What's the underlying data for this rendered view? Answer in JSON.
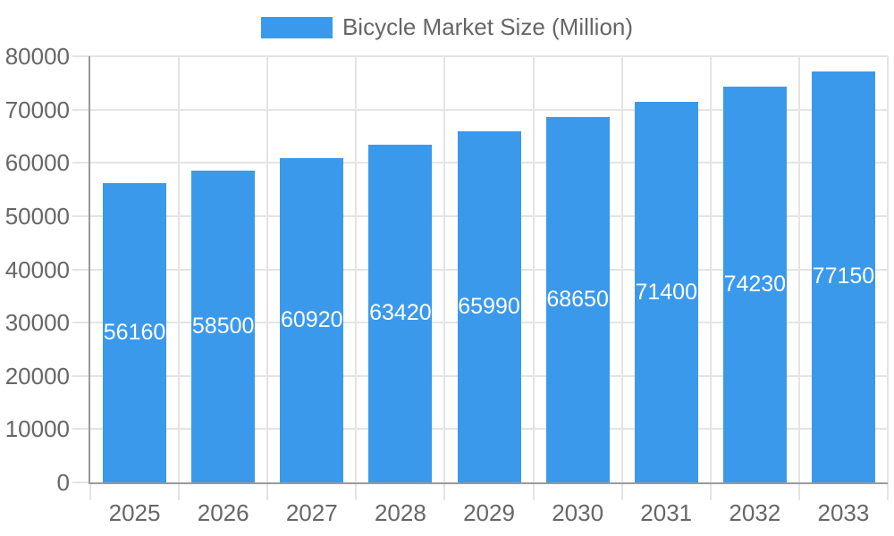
{
  "chart_data": {
    "type": "bar",
    "title": "",
    "legend": {
      "label": "Bicycle Market Size (Million)",
      "position": "top-center"
    },
    "categories": [
      "2025",
      "2026",
      "2027",
      "2028",
      "2029",
      "2030",
      "2031",
      "2032",
      "2033"
    ],
    "series": [
      {
        "name": "Bicycle Market Size (Million)",
        "values": [
          56160,
          58500,
          60920,
          63420,
          65990,
          68650,
          71400,
          74230,
          77150
        ]
      }
    ],
    "value_labels": [
      "56160",
      "58500",
      "60920",
      "63420",
      "65990",
      "68650",
      "71400",
      "74230",
      "77150"
    ],
    "xlabel": "",
    "ylabel": "",
    "ylim": [
      0,
      80000
    ],
    "yticks": [
      0,
      10000,
      20000,
      30000,
      40000,
      50000,
      60000,
      70000,
      80000
    ],
    "ytick_labels": [
      "0",
      "10000",
      "20000",
      "30000",
      "40000",
      "50000",
      "60000",
      "70000",
      "80000"
    ],
    "grid": true,
    "colors": {
      "bar": "#3b99ec",
      "value_label": "#ffffff",
      "axis_text": "#666666",
      "grid_line": "#e4e4e4",
      "axis_line": "#9a9a9a",
      "background": "#ffffff"
    }
  }
}
